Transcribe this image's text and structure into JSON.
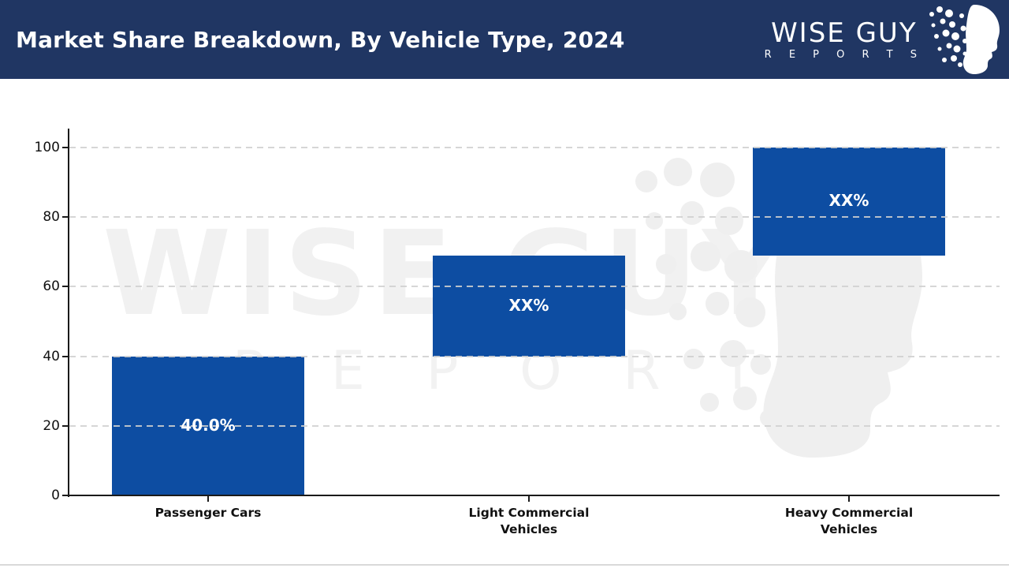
{
  "header": {
    "title": "Market Share Breakdown, By Vehicle Type, 2024",
    "bg_color": "#203663",
    "logo": {
      "line1": "WISE GUY",
      "line2": "R E P O R T S"
    }
  },
  "watermark": {
    "line1": "WISE GUY",
    "line2": "R E P O R T S"
  },
  "chart_data": {
    "type": "bar",
    "subtype": "waterfall",
    "title": "Market Share Breakdown, By Vehicle Type, 2024",
    "categories": [
      "Passenger Cars",
      "Light Commercial Vehicles",
      "Heavy Commercial Vehicles"
    ],
    "series": [
      {
        "name": "Market Share",
        "starts": [
          0,
          40,
          69
        ],
        "ends": [
          40,
          69,
          100
        ]
      }
    ],
    "bar_labels": [
      "40.0%",
      "XX%",
      "XX%"
    ],
    "ylim": [
      0,
      100
    ],
    "yticks": [
      0,
      20,
      40,
      60,
      80,
      100
    ],
    "grid": "horizontal-dashed",
    "legend": "none",
    "bar_color": "#0d4da2",
    "axis_color": "#1a1a1a",
    "gridline_color": "#d0d0d0"
  }
}
